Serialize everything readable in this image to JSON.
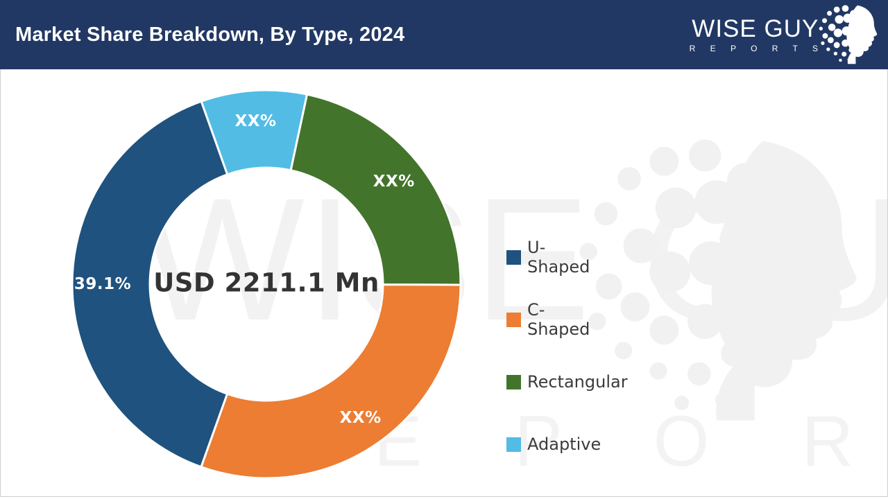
{
  "header": {
    "title": "Market Share Breakdown, By Type, 2024",
    "logo": {
      "name": "WISE GUY",
      "tagline": "R E P O R T S"
    }
  },
  "watermark": {
    "line1": "WISE GUY",
    "line2": "R E P O R T S"
  },
  "colors": {
    "header_bg": "#223864",
    "u_shaped": "#1F527E",
    "c_shaped": "#EC7D33",
    "rectangular": "#43742B",
    "adaptive": "#52BCE4",
    "center_text": "#333333"
  },
  "chart_data": {
    "type": "pie",
    "subtype": "donut",
    "title": "Market Share Breakdown, By Type, 2024",
    "center_label": "USD 2211.1 Mn",
    "start_angle_deg": 340.4,
    "direction": "clockwise",
    "slices": [
      {
        "label": "Adaptive",
        "value_pct": 8.8,
        "display": "XX%",
        "color": "#52BCE4"
      },
      {
        "label": "Rectangular",
        "value_pct": 21.7,
        "display": "XX%",
        "color": "#43742B"
      },
      {
        "label": "C-Shaped",
        "value_pct": 30.4,
        "display": "XX%",
        "color": "#EC7D33"
      },
      {
        "label": "U-Shaped",
        "value_pct": 39.1,
        "display": "39.1%",
        "color": "#1F527E"
      }
    ],
    "legend": {
      "position": "right",
      "items": [
        {
          "label": "U-Shaped",
          "color": "#1F527E"
        },
        {
          "label": "C-Shaped",
          "color": "#EC7D33"
        },
        {
          "label": "Rectangular",
          "color": "#43742B"
        },
        {
          "label": "Adaptive",
          "color": "#52BCE4"
        }
      ]
    }
  }
}
